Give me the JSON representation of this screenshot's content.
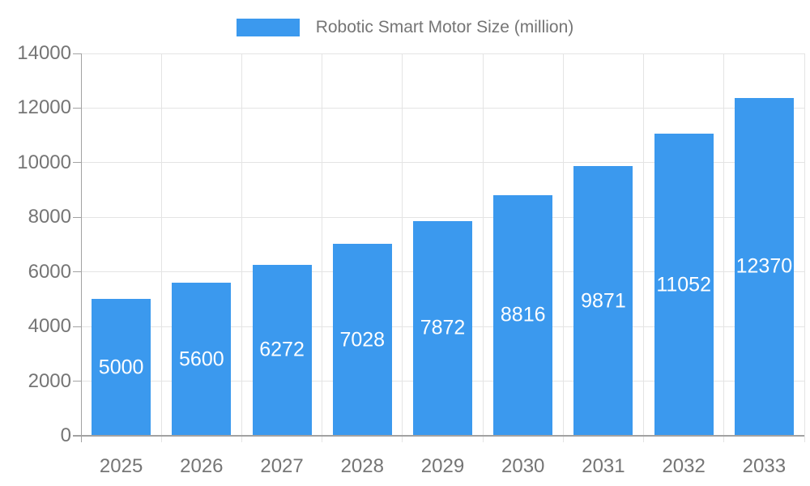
{
  "chart_data": {
    "type": "bar",
    "categories": [
      "2025",
      "2026",
      "2027",
      "2028",
      "2029",
      "2030",
      "2031",
      "2032",
      "2033"
    ],
    "values": [
      5000,
      5600,
      6272,
      7028,
      7872,
      8816,
      9871,
      11052,
      12370
    ],
    "title": "",
    "xlabel": "",
    "ylabel": "",
    "ylim": [
      0,
      14000
    ],
    "ytick_step": 2000,
    "ytick_labels": [
      "0",
      "2000",
      "4000",
      "6000",
      "8000",
      "10000",
      "12000",
      "14000"
    ],
    "grid": true,
    "legend": {
      "position": "top",
      "label": "Robotic Smart Motor Size (million)"
    },
    "colors": {
      "bar": "#3B99EE",
      "value_label": "#ffffff",
      "axis_text": "#757575",
      "gridline": "#e4e4e4",
      "axis_line": "#a2a2a2"
    }
  }
}
